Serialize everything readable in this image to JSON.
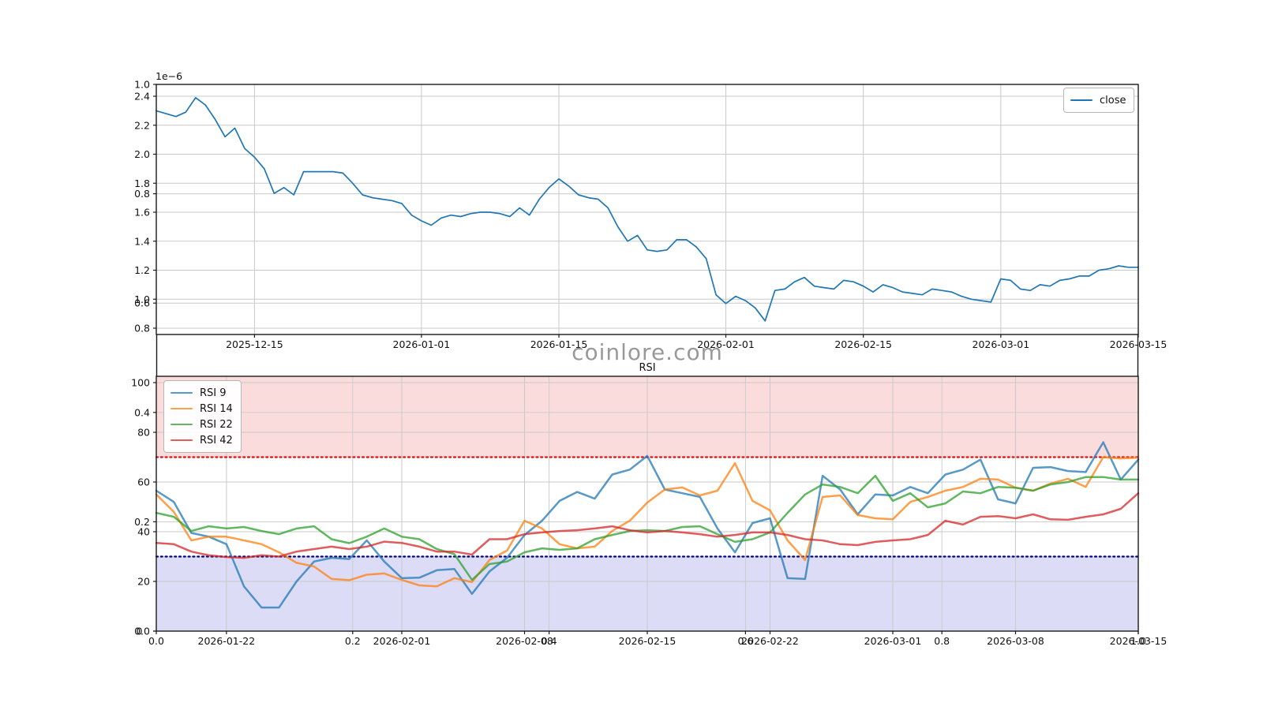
{
  "watermark": "coinlore.com",
  "colors": {
    "close": "#1f77b4",
    "rsi9": "#1f77b4",
    "rsi14": "#ff7f0e",
    "rsi22": "#2ca02c",
    "rsi42": "#d62728",
    "overbought_line": "#dd1111",
    "oversold_line": "#000080",
    "overbought_band": "#fbdcdc",
    "oversold_band": "#dddcf7",
    "grid": "#c9c9c9",
    "spine": "#1a1a1a",
    "watermark_color": "#999999"
  },
  "hidden_axis": {
    "x_tick_labels": [
      "0.0",
      "0.2",
      "0.4",
      "0.6",
      "0.8",
      "1.0"
    ],
    "y_tick_labels": [
      "0.0",
      "0.2",
      "0.4",
      "0.6",
      "0.8",
      "1.0"
    ]
  },
  "chart_data": [
    {
      "type": "line",
      "title": "",
      "y_offset_label": "1e−6",
      "x_range": [
        "2025-12-05",
        "2026-03-15"
      ],
      "x_frequency": "daily",
      "x_tick_labels": [
        "2025-12-15",
        "2026-01-01",
        "2026-01-15",
        "2026-02-01",
        "2026-02-15",
        "2026-03-01",
        "2026-03-15"
      ],
      "x_tick_day_index": [
        10,
        27,
        41,
        58,
        72,
        86,
        100
      ],
      "y_tick_labels": [
        "0.8",
        "1.0",
        "1.2",
        "1.4",
        "1.6",
        "1.8",
        "2.0",
        "2.2",
        "2.4"
      ],
      "y_ticks": [
        0.8,
        1.0,
        1.2,
        1.4,
        1.6,
        1.8,
        2.0,
        2.2,
        2.4
      ],
      "ylim": [
        0.757,
        2.483
      ],
      "unit": "1e-6",
      "grid": true,
      "legend_position": "upper right",
      "series": [
        {
          "name": "close",
          "color": "#1f77b4",
          "values": [
            2.3,
            2.28,
            2.26,
            2.29,
            2.39,
            2.34,
            2.24,
            2.12,
            2.18,
            2.04,
            1.98,
            1.9,
            1.73,
            1.77,
            1.72,
            1.88,
            1.88,
            1.88,
            1.88,
            1.87,
            1.8,
            1.72,
            1.7,
            1.69,
            1.68,
            1.66,
            1.58,
            1.54,
            1.51,
            1.56,
            1.58,
            1.57,
            1.59,
            1.6,
            1.6,
            1.59,
            1.57,
            1.63,
            1.58,
            1.69,
            1.77,
            1.83,
            1.78,
            1.72,
            1.7,
            1.69,
            1.63,
            1.5,
            1.4,
            1.44,
            1.34,
            1.33,
            1.34,
            1.41,
            1.41,
            1.36,
            1.28,
            1.03,
            0.97,
            1.02,
            0.99,
            0.94,
            0.85,
            1.06,
            1.07,
            1.12,
            1.15,
            1.09,
            1.08,
            1.07,
            1.13,
            1.12,
            1.09,
            1.05,
            1.1,
            1.08,
            1.05,
            1.04,
            1.03,
            1.07,
            1.06,
            1.05,
            1.02,
            1.0,
            0.99,
            0.98,
            1.14,
            1.13,
            1.07,
            1.06,
            1.1,
            1.09,
            1.13,
            1.14,
            1.16,
            1.16,
            1.2,
            1.21,
            1.23,
            1.22,
            1.22
          ]
        }
      ]
    },
    {
      "type": "line",
      "title": "RSI",
      "x_range": [
        "2026-01-18",
        "2026-03-15"
      ],
      "x_frequency": "daily",
      "x_tick_labels": [
        "2026-01-22",
        "2026-02-01",
        "2026-02-08",
        "2026-02-15",
        "2026-02-22",
        "2026-03-01",
        "2026-03-08",
        "2026-03-15"
      ],
      "x_tick_day_index": [
        4,
        14,
        21,
        28,
        35,
        42,
        49,
        56
      ],
      "y_tick_labels": [
        "0",
        "20",
        "40",
        "60",
        "80",
        "100"
      ],
      "y_ticks": [
        0,
        20,
        40,
        60,
        80,
        100
      ],
      "ylim": [
        0,
        102.5
      ],
      "grid": true,
      "legend_position": "upper left",
      "hlines": [
        {
          "value": 70,
          "style": "dotted",
          "color": "#dd1111",
          "meaning": "overbought threshold"
        },
        {
          "value": 30,
          "style": "dotted",
          "color": "#000080",
          "meaning": "oversold threshold"
        }
      ],
      "bands": [
        {
          "from": 70,
          "to": 102.5,
          "color": "#fbdcdc",
          "meaning": "overbought zone"
        },
        {
          "from": 0,
          "to": 30,
          "color": "#dddcf7",
          "meaning": "oversold zone"
        }
      ],
      "series": [
        {
          "name": "RSI 9",
          "color": "#1f77b4",
          "values": [
            56.5,
            52,
            39.5,
            38,
            35,
            18,
            9.5,
            9.5,
            20,
            28,
            29.5,
            29,
            36.5,
            28,
            21.3,
            21.5,
            24.5,
            25,
            15,
            24,
            29.5,
            38.7,
            44.4,
            52.4,
            56,
            53.3,
            63,
            65,
            70.5,
            57,
            55.5,
            54,
            41.3,
            31.7,
            43.5,
            45.4,
            21.3,
            21,
            62.5,
            57,
            47,
            55,
            54.6,
            58,
            55.5,
            63,
            65,
            69,
            53,
            51.4,
            65.7,
            66,
            64.4,
            64,
            76,
            61,
            69
          ]
        },
        {
          "name": "RSI 14",
          "color": "#ff7f0e",
          "values": [
            55,
            48,
            36.5,
            38,
            38,
            36.5,
            35,
            31.7,
            27.5,
            26,
            21,
            20.5,
            22.7,
            23.2,
            20.6,
            18.4,
            18,
            21.3,
            19.7,
            28.6,
            32.4,
            44.4,
            41.3,
            35,
            33.3,
            34,
            40.3,
            44.4,
            51.7,
            57,
            57.8,
            54.6,
            56.5,
            67.6,
            52.4,
            48.6,
            36.5,
            28.6,
            54,
            54.6,
            46.7,
            45.4,
            45,
            52,
            54,
            56.5,
            58,
            61.3,
            61,
            57.7,
            56.5,
            59.4,
            61.3,
            58,
            70,
            69.5,
            69.8
          ]
        },
        {
          "name": "RSI 22",
          "color": "#2ca02c",
          "values": [
            47.6,
            46,
            40.3,
            42.2,
            41.3,
            41.9,
            40.3,
            39,
            41.3,
            42.2,
            37,
            35.4,
            38,
            41.3,
            38,
            37,
            33,
            31,
            20.6,
            27,
            28,
            31.7,
            33.3,
            32.7,
            33.3,
            37,
            38.7,
            40.3,
            40.6,
            40.3,
            41.9,
            42.2,
            39,
            35.9,
            37,
            39.7,
            47.6,
            55,
            59,
            58,
            55.5,
            62.5,
            52.4,
            55.5,
            49.8,
            51.4,
            56.2,
            55.5,
            58,
            57.7,
            56.5,
            59,
            60,
            62,
            62,
            61,
            61
          ]
        },
        {
          "name": "RSI 42",
          "color": "#d62728",
          "values": [
            35.5,
            35,
            32,
            30.5,
            29.8,
            29.5,
            30.5,
            30,
            32,
            33,
            34,
            33,
            34,
            36,
            35.5,
            34,
            32,
            32,
            30.8,
            37,
            37,
            39,
            39.7,
            40.3,
            40.6,
            41.3,
            42.2,
            40.6,
            39.7,
            40.3,
            39.7,
            39,
            38,
            38.7,
            39.7,
            39.7,
            38.7,
            37,
            36.5,
            35,
            34.6,
            35.9,
            36.5,
            37,
            38.7,
            44.4,
            42.9,
            46,
            46.3,
            45.4,
            47,
            45,
            44.8,
            46,
            47,
            49.2,
            55.5
          ]
        }
      ]
    }
  ]
}
